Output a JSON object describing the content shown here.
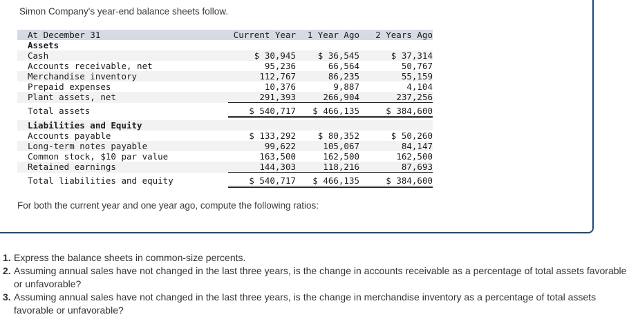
{
  "intro": "Simon Company's year-end balance sheets follow.",
  "balance_sheet": {
    "columns": [
      "At December 31",
      "Current Year",
      "1 Year Ago",
      "2 Years Ago"
    ],
    "sections": [
      {
        "heading": "Assets",
        "rows": [
          {
            "label": "Cash",
            "values": [
              "$ 30,945",
              "$ 36,545",
              "$ 37,314"
            ],
            "rule": false
          },
          {
            "label": "Accounts receivable, net",
            "values": [
              "95,236",
              "66,564",
              "50,767"
            ],
            "rule": false
          },
          {
            "label": "Merchandise inventory",
            "values": [
              "112,767",
              "86,235",
              "55,159"
            ],
            "rule": false
          },
          {
            "label": "Prepaid expenses",
            "values": [
              "10,376",
              "9,887",
              "4,104"
            ],
            "rule": false
          },
          {
            "label": "Plant assets, net",
            "values": [
              "291,393",
              "266,904",
              "237,256"
            ],
            "rule": true
          }
        ],
        "total": {
          "label": "Total assets",
          "values": [
            "$ 540,717",
            "$ 466,135",
            "$ 384,600"
          ]
        }
      },
      {
        "heading": "Liabilities and Equity",
        "rows": [
          {
            "label": "Accounts payable",
            "values": [
              "$ 133,292",
              "$ 80,352",
              "$ 50,260"
            ],
            "rule": false
          },
          {
            "label": "Long-term notes payable",
            "values": [
              "99,622",
              "105,067",
              "84,147"
            ],
            "rule": false
          },
          {
            "label": "Common stock, $10 par value",
            "values": [
              "163,500",
              "162,500",
              "162,500"
            ],
            "rule": false
          },
          {
            "label": "Retained earnings",
            "values": [
              "144,303",
              "118,216",
              "87,693"
            ],
            "rule": true
          }
        ],
        "total": {
          "label": "Total liabilities and equity",
          "values": [
            "$ 540,717",
            "$ 466,135",
            "$ 384,600"
          ]
        }
      }
    ]
  },
  "instruction": "For both the current year and one year ago, compute the following ratios:",
  "questions": [
    {
      "number": "1.",
      "text": "Express the balance sheets in common-size percents."
    },
    {
      "number": "2.",
      "text": "Assuming annual sales have not changed in the last three years, is the change in accounts receivable as a percentage of total assets favorable or unfavorable?"
    },
    {
      "number": "3.",
      "text": "Assuming annual sales have not changed in the last three years, is the change in merchandise inventory as a percentage of total assets favorable or unfavorable?"
    }
  ],
  "colors": {
    "box_border": "#1b4a7c",
    "table_header_bg": "#d7dae3",
    "row_stripe_bg": "#f2f2f2",
    "rule_color": "#222222"
  }
}
